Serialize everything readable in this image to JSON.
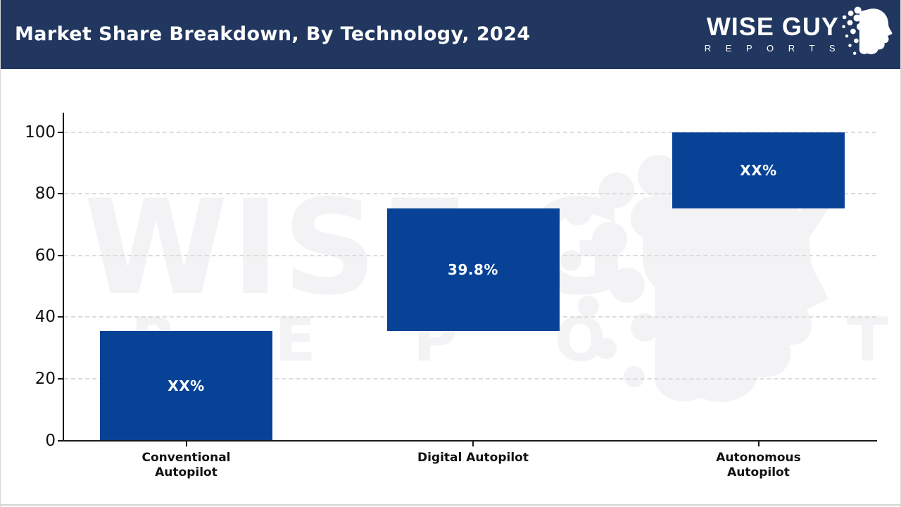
{
  "header": {
    "title": "Market Share Breakdown, By Technology, 2024",
    "logo": {
      "line1": "WISE GUY",
      "line2": "R E P O R T S"
    }
  },
  "watermark": {
    "line1": "WISE GUY",
    "line2": "R E P O R T S"
  },
  "colors": {
    "header_bg": "#21375f",
    "bar": "#084296",
    "gridline": "#dcdcdc",
    "axis": "#1a1a1a",
    "watermark": "#f3f3f5",
    "bar_label": "#ffffff"
  },
  "chart_data": {
    "type": "bar",
    "subtype": "floating-segment-bars",
    "title": "Market Share Breakdown, By Technology, 2024",
    "xlabel": "",
    "ylabel": "",
    "categories": [
      "Conventional Autopilot",
      "Digital Autopilot",
      "Autonomous Autopilot"
    ],
    "category_label_lines": [
      [
        "Conventional",
        "Autopilot"
      ],
      [
        "Digital Autopilot"
      ],
      [
        "Autonomous",
        "Autopilot"
      ]
    ],
    "segments": [
      {
        "category": "Conventional Autopilot",
        "from": 0,
        "to": 35.4,
        "height": 35.4,
        "label": "XX%"
      },
      {
        "category": "Digital Autopilot",
        "from": 35.4,
        "to": 75.2,
        "height": 39.8,
        "label": "39.8%"
      },
      {
        "category": "Autonomous Autopilot",
        "from": 75.2,
        "to": 100,
        "height": 24.8,
        "label": "XX%"
      }
    ],
    "yticks": [
      0,
      20,
      40,
      60,
      80,
      100
    ],
    "ylim": [
      0,
      106
    ],
    "grid": "dashed-horizontal",
    "legend": "none"
  }
}
